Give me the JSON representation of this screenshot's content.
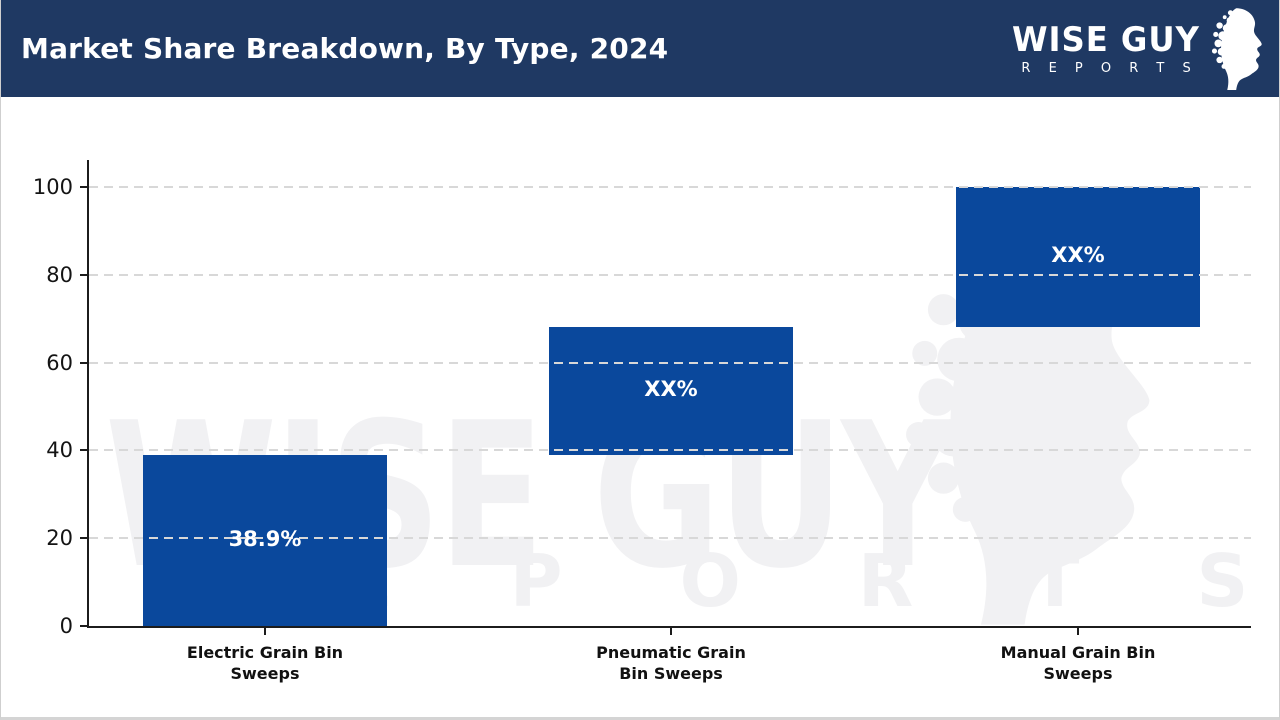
{
  "header": {
    "title": "Market Share Breakdown, By Type, 2024",
    "logo": {
      "name": "Wise Guy Reports logo",
      "line1": "WISE GUY",
      "line2": "R E P O R T S"
    }
  },
  "watermark": {
    "line1": "WISE GUY",
    "line2": "R E P O R T S"
  },
  "chart_data": {
    "type": "bar",
    "variant": "waterfall",
    "title": "Market Share Breakdown, By Type, 2024",
    "categories": [
      "Electric Grain Bin\nSweeps",
      "Pneumatic Grain\nBin Sweeps",
      "Manual Grain Bin\nSweeps"
    ],
    "bars": [
      {
        "category": "Electric Grain Bin Sweeps",
        "start": 0,
        "end": 38.9,
        "label": "38.9%"
      },
      {
        "category": "Pneumatic Grain Bin Sweeps",
        "start": 38.9,
        "end": 68,
        "label": "XX%"
      },
      {
        "category": "Manual Grain Bin Sweeps",
        "start": 68,
        "end": 100,
        "label": "XX%"
      }
    ],
    "ylim": [
      0,
      100
    ],
    "yticks": [
      "0",
      "20",
      "40",
      "60",
      "80",
      "100"
    ],
    "grid": "horizontal-dashed",
    "legend": "none",
    "colors": {
      "bar": "#0A489C",
      "bar_label": "#FFFFFF",
      "grid": "#D8D8D8",
      "axis": "#1C1C1C",
      "tick_label": "#141414",
      "header_bg": "#1F3963",
      "header_text": "#FFFFFF",
      "watermark": "#F1F1F3"
    }
  }
}
